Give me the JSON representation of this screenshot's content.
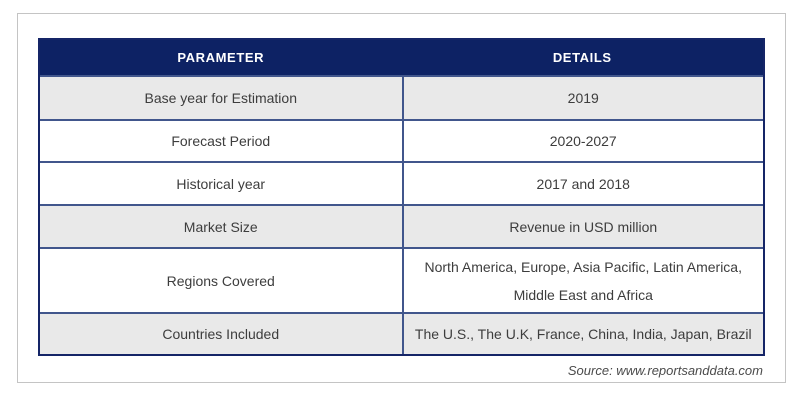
{
  "table": {
    "header": {
      "columns": [
        "PARAMETER",
        "DETAILS"
      ]
    },
    "rows": [
      {
        "parameter": "Base year for Estimation",
        "details": "2019",
        "shaded": true
      },
      {
        "parameter": "Forecast Period",
        "details": "2020-2027",
        "shaded": false
      },
      {
        "parameter": "Historical year",
        "details": "2017 and 2018",
        "shaded": false
      },
      {
        "parameter": "Market Size",
        "details": "Revenue in USD million",
        "shaded": true
      },
      {
        "parameter": "Regions Covered",
        "details": "North America, Europe, Asia Pacific, Latin America, Middle East and Africa",
        "shaded": false
      },
      {
        "parameter": "Countries Included",
        "details": "The U.S., The U.K, France, China, India, Japan, Brazil",
        "shaded": true
      }
    ]
  },
  "footer": {
    "source": "Source: www.reportsanddata.com"
  },
  "colors": {
    "header_bg": "#0d2264",
    "header_text": "#ffffff",
    "shaded_row_bg": "#e9e9e9",
    "row_bg": "#ffffff",
    "inner_border": "#41568c",
    "outer_border": "#152567",
    "card_border": "#c4c4c4",
    "body_text": "#3d3d3d",
    "source_text": "#4b4b4b"
  },
  "chart_data": {
    "type": "table",
    "title": "",
    "columns": [
      "PARAMETER",
      "DETAILS"
    ],
    "rows": [
      [
        "Base year for Estimation",
        "2019"
      ],
      [
        "Forecast Period",
        "2020-2027"
      ],
      [
        "Historical year",
        "2017 and 2018"
      ],
      [
        "Market Size",
        "Revenue in USD million"
      ],
      [
        "Regions Covered",
        "North America, Europe, Asia Pacific, Latin America, Middle East and Africa"
      ],
      [
        "Countries Included",
        "The U.S., The U.K, France, China, India, Japan, Brazil"
      ]
    ],
    "source": "Source: www.reportsanddata.com",
    "layout": {
      "header_position": "top",
      "zebra_pattern": [
        "shaded",
        "plain",
        "plain",
        "shaded",
        "plain",
        "shaded"
      ]
    }
  }
}
